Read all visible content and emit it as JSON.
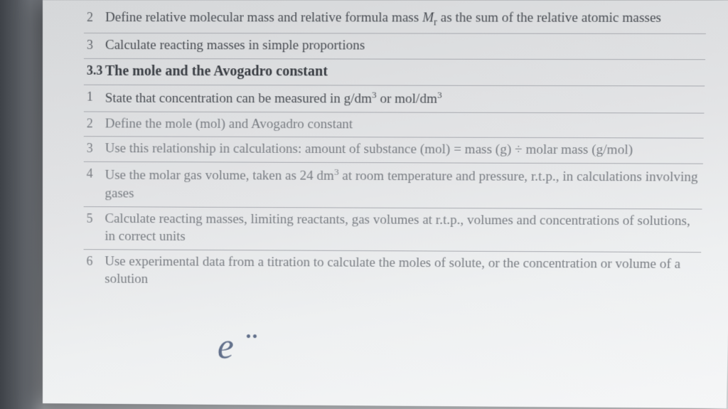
{
  "rows": [
    {
      "num": "2",
      "text": "Define relative molecular mass and relative formula mass M_r as the sum of the relative atomic masses",
      "faded": false
    },
    {
      "num": "3",
      "text": "Calculate reacting masses in simple proportions",
      "faded": false
    },
    {
      "num": "3.3",
      "text": "The mole and the Avogadro constant",
      "heading": true
    },
    {
      "num": "1",
      "text": "State that concentration can be measured in g/dm³ or mol/dm³",
      "faded": false
    },
    {
      "num": "2",
      "text": "Define the mole (mol) and Avogadro constant",
      "faded": true
    },
    {
      "num": "3",
      "text": "Use this relationship in calculations:   amount of substance (mol) = mass (g) ÷ molar mass (g/mol)",
      "faded": true
    },
    {
      "num": "4",
      "text": "Use the molar gas volume, taken as 24 dm³ at room temperature and pressure, r.t.p., in calculations involving gases",
      "faded": true
    },
    {
      "num": "5",
      "text": "Calculate reacting masses, limiting reactants, gas volumes at r.t.p., volumes and concentrations of solutions, in correct units",
      "faded": true
    },
    {
      "num": "6",
      "text": "Use experimental data from a titration to calculate the moles of solute, or the concentration or volume of a solution",
      "faded": true,
      "noborder": true
    }
  ],
  "handwritten": "e ¨",
  "colors": {
    "background_dark": "#6b6f75",
    "background_light": "#d8dadc",
    "page_light": "#f5f6f7",
    "page_dark": "#d5d7d9",
    "border": "#a8aab0",
    "text": "#4a4e54",
    "text_faded": "#7a7e84",
    "handwritten": "#4a5a7a"
  },
  "typography": {
    "body_fontsize": 19,
    "heading_fontsize": 20,
    "num_fontsize": 18,
    "handwritten_fontsize": 52,
    "font_family": "Georgia, serif"
  }
}
